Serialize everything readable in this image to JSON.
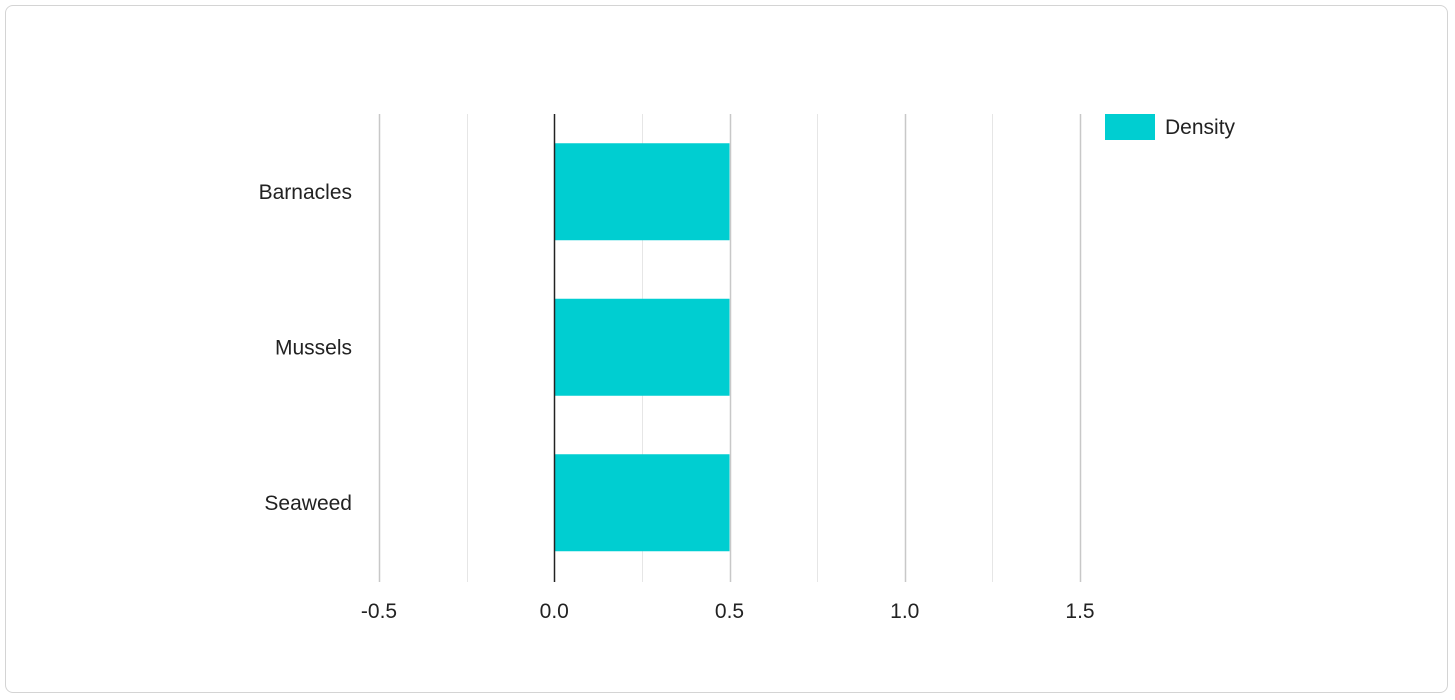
{
  "chart_data": {
    "type": "bar",
    "orientation": "horizontal",
    "categories": [
      "Barnacles",
      "Mussels",
      "Seaweed"
    ],
    "series": [
      {
        "name": "Density",
        "values": [
          0.5,
          0.5,
          0.5
        ],
        "color": "#00CED1"
      }
    ],
    "xlim": [
      -0.5,
      1.5
    ],
    "x_ticks": [
      "-0.5",
      "0.0",
      "0.5",
      "1.0",
      "1.5"
    ],
    "x_tick_values": [
      -0.5,
      0.0,
      0.5,
      1.0,
      1.5
    ],
    "minor_gridlines": [
      -0.25,
      0.25,
      0.75,
      1.25
    ],
    "grid": true,
    "legend": "top-right",
    "title": "",
    "xlabel": "",
    "ylabel": ""
  },
  "colors": {
    "bar": "#00CED1",
    "major_grid": "#c8c8c8",
    "minor_grid": "#e6e6e6",
    "zero_line": "#222222",
    "text": "#222222"
  }
}
